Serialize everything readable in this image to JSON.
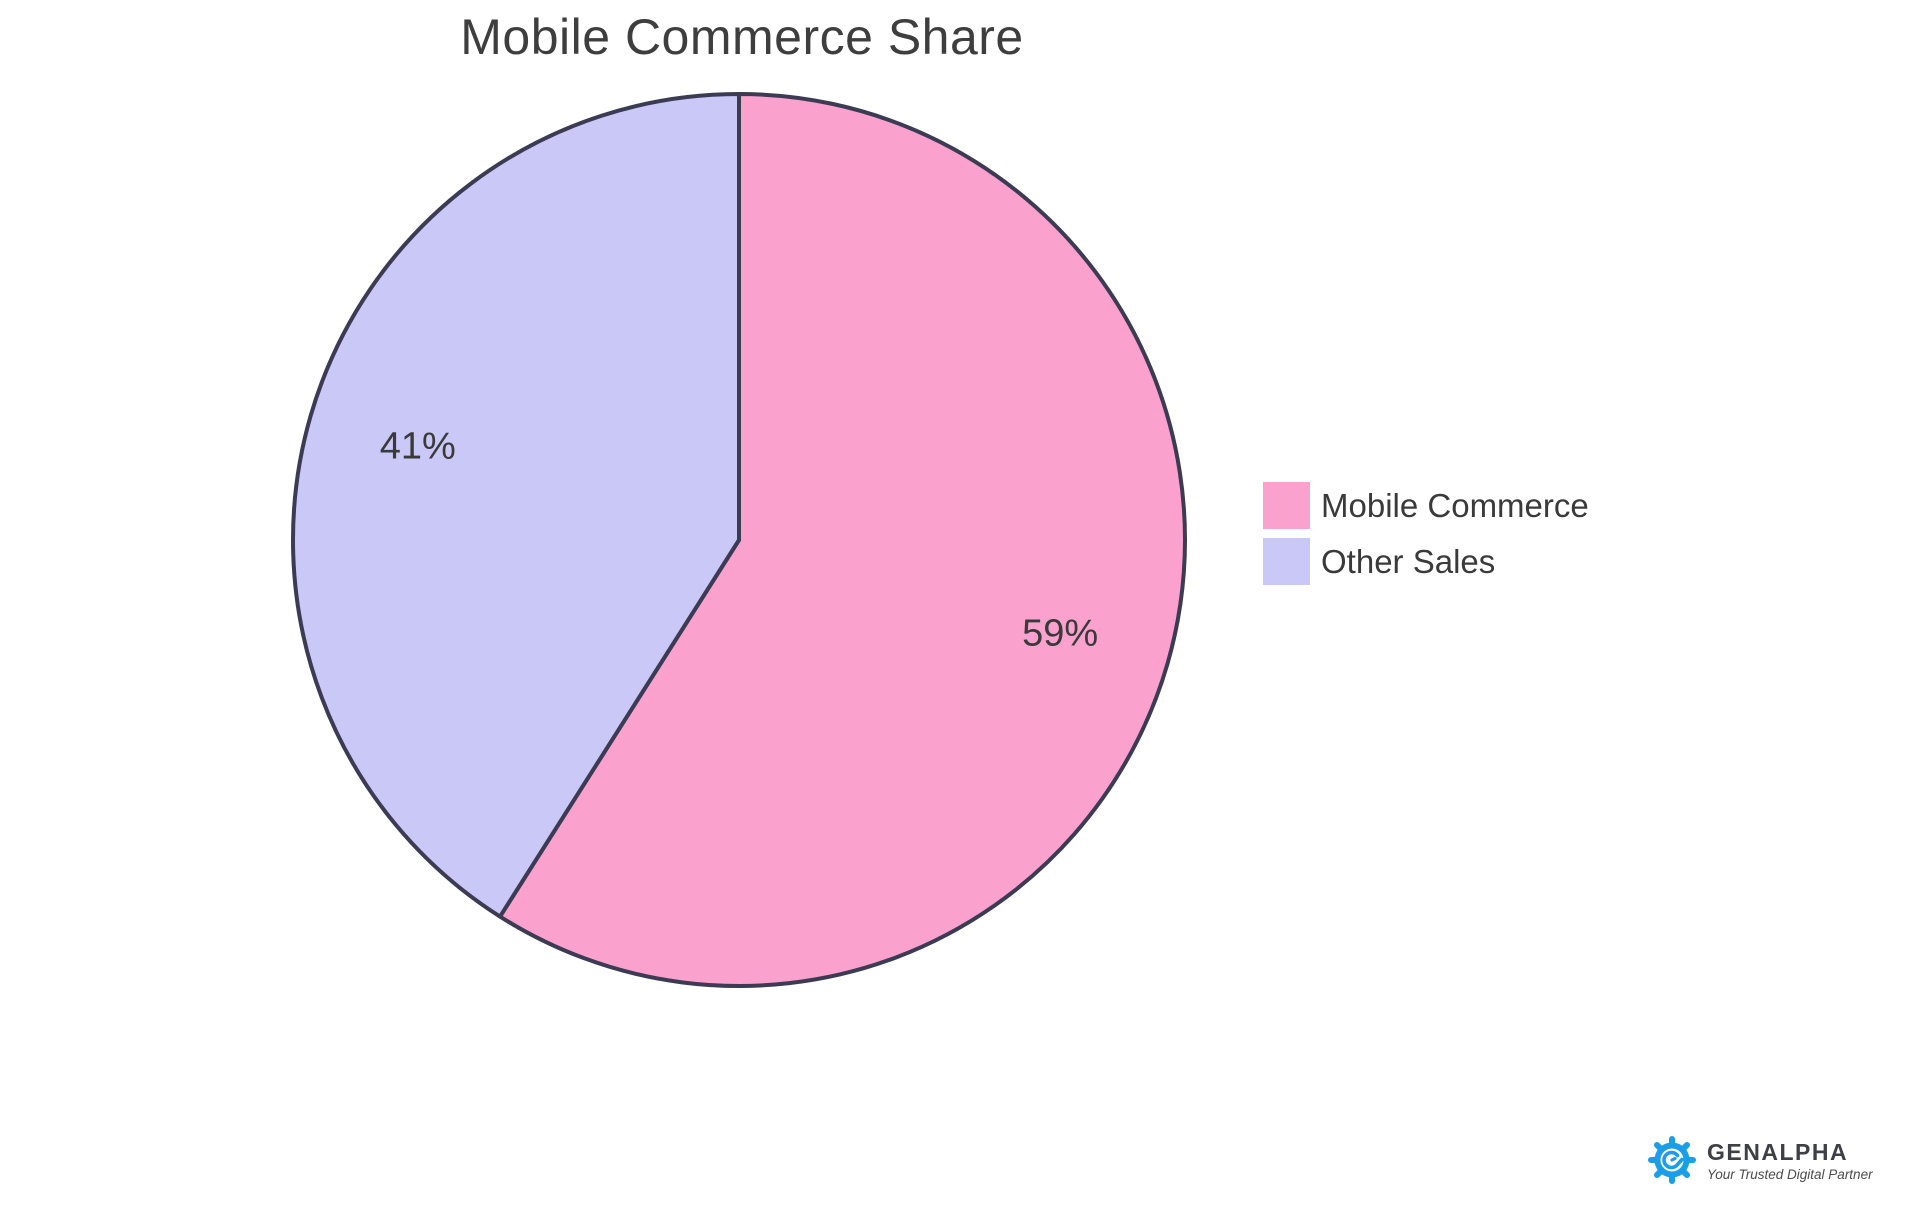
{
  "page": {
    "background": "#FFFFFF",
    "title_color": "#3E3E3E"
  },
  "chart_data": {
    "type": "pie",
    "title": "Mobile Commerce Share",
    "categories": [
      "Mobile Commerce",
      "Other Sales"
    ],
    "values": [
      59,
      41
    ],
    "slice_labels": [
      "59%",
      "41%"
    ],
    "colors": [
      "#FBA1CD",
      "#C9C8F7"
    ],
    "slice_border_color": "#3C3B54",
    "slice_border_width": 4,
    "slice_label_color": "#3A3A3A",
    "slice_label_radius_ratio": 0.75,
    "start_angle": "12 o'clock",
    "direction": "clockwise",
    "legend_position": "right"
  },
  "legend": {
    "items": [
      {
        "label": "Mobile Commerce",
        "color": "#FBA1CD"
      },
      {
        "label": "Other Sales",
        "color": "#C9C8F7"
      }
    ]
  },
  "branding": {
    "name": "GENALPHA",
    "tagline": "Your Trusted Digital Partner",
    "accent_color": "#1B9DE8"
  }
}
